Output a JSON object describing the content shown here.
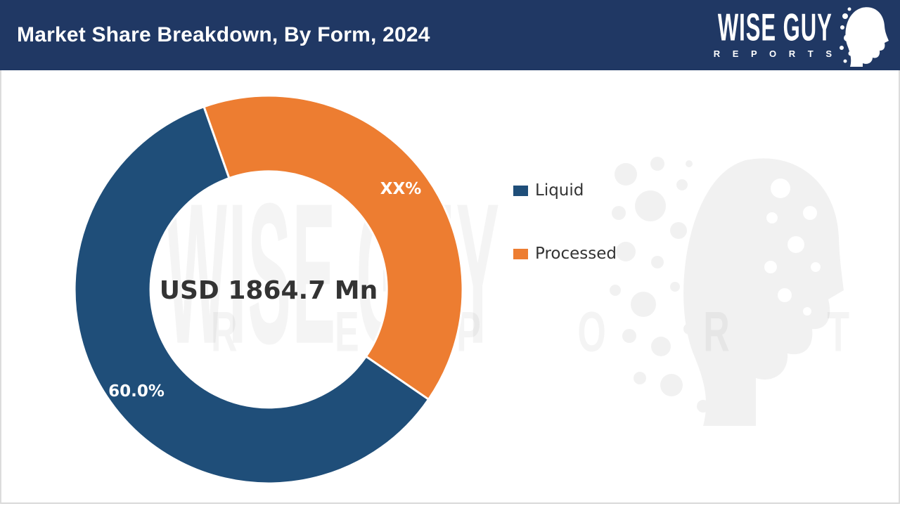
{
  "header": {
    "title": "Market Share Breakdown, By Form, 2024",
    "background_color": "#203864",
    "text_color": "#ffffff",
    "logo": {
      "primary": "WISE GUY",
      "secondary": "R E P O R T S"
    }
  },
  "watermark": {
    "primary": "WISE GUY",
    "secondary": "R E P O R T S"
  },
  "chart_data": {
    "type": "pie",
    "subtype": "donut",
    "title": "Market Share Breakdown, By Form, 2024",
    "center_label": "USD 1864.7 Mn",
    "center_label_color": "#333333",
    "slice_label_color": "#ffffff",
    "start_angle_deg": 109.5,
    "direction": "clockwise",
    "inner_radius_fraction": 0.61,
    "label_radius_fraction": 0.86,
    "slices": [
      {
        "name": "Processed",
        "pct": 40,
        "display_label": "XX%",
        "color": "#ED7D31"
      },
      {
        "name": "Liquid",
        "pct": 60,
        "display_label": "60.0%",
        "color": "#1F4E79"
      }
    ],
    "legend": {
      "position": "right",
      "items": [
        {
          "label": "Liquid",
          "color": "#1F4E79"
        },
        {
          "label": "Processed",
          "color": "#ED7D31"
        }
      ]
    }
  }
}
